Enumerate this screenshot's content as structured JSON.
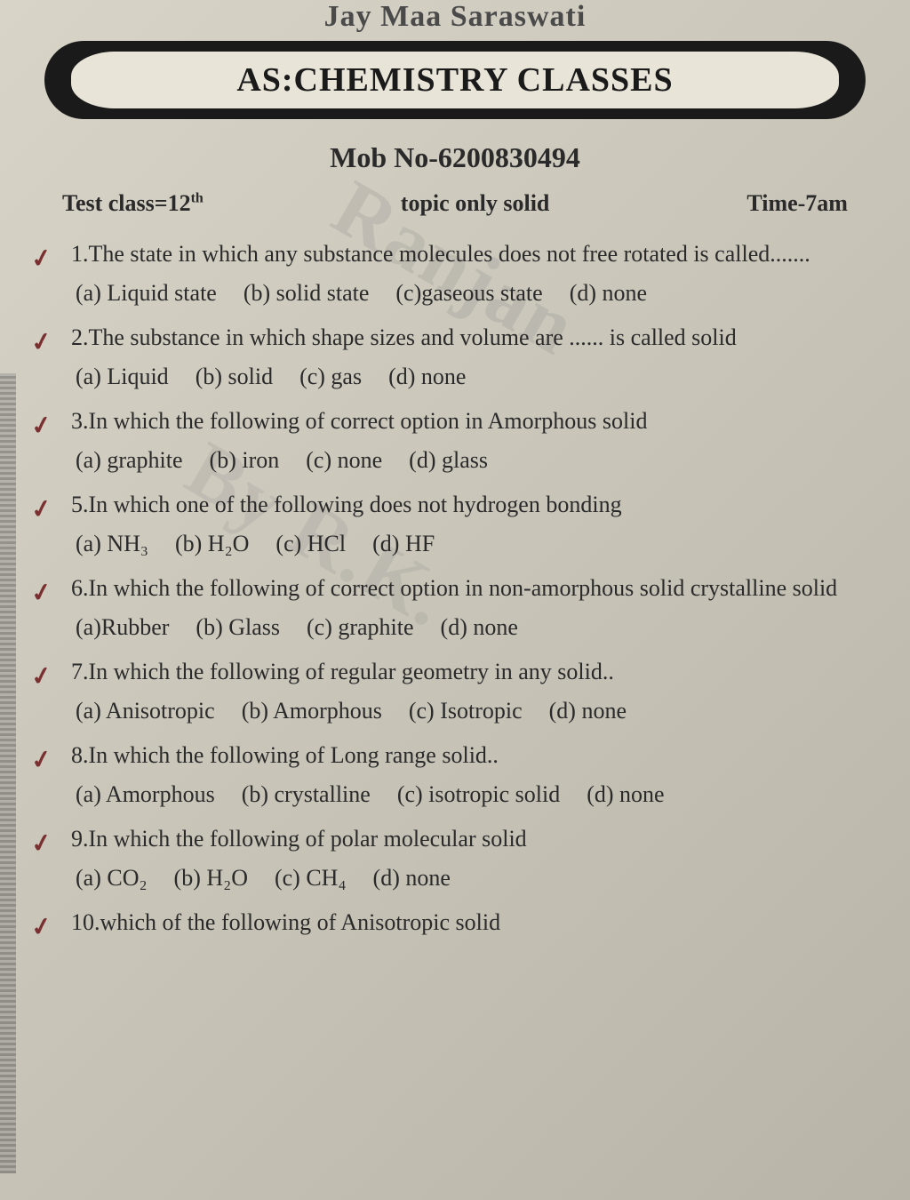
{
  "header": {
    "top_title": "Jay Maa Saraswati",
    "banner": "AS:CHEMISTRY CLASSES",
    "mob_no": "Mob No-6200830494"
  },
  "test_info": {
    "class": "Test class=12",
    "class_sup": "th",
    "topic": "topic only solid",
    "time": "Time-7am"
  },
  "watermark": "Ranjan",
  "watermark2": "By R.K.",
  "questions": [
    {
      "num": "1.",
      "text": "The state in which any substance molecules does not free rotated is called.......",
      "options": [
        "(a) Liquid state",
        "(b) solid state",
        "(c)gaseous state",
        "(d) none"
      ]
    },
    {
      "num": "2.",
      "text": "The substance in which shape sizes and volume are ...... is called solid",
      "options": [
        "(a) Liquid",
        "(b) solid",
        "(c) gas",
        "(d) none"
      ]
    },
    {
      "num": "3.",
      "text": "In which the following of correct option in Amorphous solid",
      "options": [
        "(a) graphite",
        "(b) iron",
        "(c) none",
        "(d) glass"
      ]
    },
    {
      "num": "5.",
      "text": "In which one of the following does not hydrogen bonding",
      "options": [
        "(a) NH₃",
        "(b) H₂O",
        "(c) HCl",
        "(d) HF"
      ]
    },
    {
      "num": "6.",
      "text": "In which the following of correct option in non-amorphous solid crystalline solid",
      "options": [
        "(a)Rubber",
        "(b) Glass",
        "(c) graphite",
        "(d) none"
      ]
    },
    {
      "num": "7.",
      "text": "In which the following of regular geometry in any solid..",
      "options": [
        "(a) Anisotropic",
        "(b) Amorphous",
        "(c) Isotropic",
        "(d) none"
      ]
    },
    {
      "num": "8.",
      "text": "In which the following of Long range solid..",
      "options": [
        "(a) Amorphous",
        "(b) crystalline",
        "(c) isotropic solid",
        "(d) none"
      ]
    },
    {
      "num": "9.",
      "text": "In which the following of polar molecular solid",
      "options": [
        "(a) CO₂",
        "(b) H₂O",
        "(c) CH₄",
        "(d) none"
      ]
    },
    {
      "num": "10.",
      "text": "which of the following of Anisotropic solid",
      "options": []
    }
  ],
  "colors": {
    "bg_start": "#d8d4c8",
    "bg_end": "#b8b4a8",
    "text": "#2a2a2a",
    "banner_bg": "#1a1a1a",
    "banner_inner": "#e8e4d8",
    "tick": "#7a3030"
  }
}
